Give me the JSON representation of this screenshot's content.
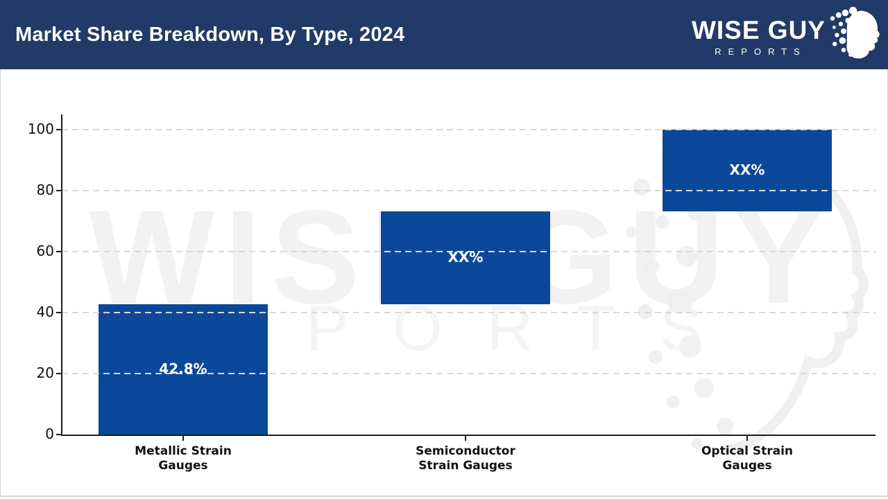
{
  "header": {
    "title": "Market Share Breakdown, By Type, 2024",
    "logo": {
      "line1": "WISE GUY",
      "line2": "REPORTS"
    }
  },
  "watermark": {
    "line1": "WISE GUY",
    "line2": "REPORTS"
  },
  "chart_data": {
    "type": "bar",
    "subtype": "stacked-waterfall",
    "title": "Market Share Breakdown, By Type, 2024",
    "categories": [
      "Metallic Strain\nGauges",
      "Semiconductor\nStrain Gauges",
      "Optical Strain\nGauges"
    ],
    "series": [
      {
        "name": "Market share (%)",
        "segments": [
          {
            "category": "Metallic Strain Gauges",
            "start": 0,
            "end": 42.8,
            "label": "42.8%"
          },
          {
            "category": "Semiconductor Strain Gauges",
            "start": 42.8,
            "end": 73.2,
            "label": "XX%"
          },
          {
            "category": "Optical Strain Gauges",
            "start": 73.2,
            "end": 100,
            "label": "XX%"
          }
        ]
      }
    ],
    "ylim": [
      0,
      100
    ],
    "yticks": [
      0,
      20,
      40,
      60,
      80,
      100
    ],
    "grid": {
      "horizontal": true,
      "style": "dashed",
      "color": "#d9d9d9"
    },
    "legend": null,
    "colors": {
      "bar": "#0C4899",
      "bar_label": "#ffffff",
      "axis": "#1c1c1c",
      "tick_label": "#111111"
    }
  }
}
